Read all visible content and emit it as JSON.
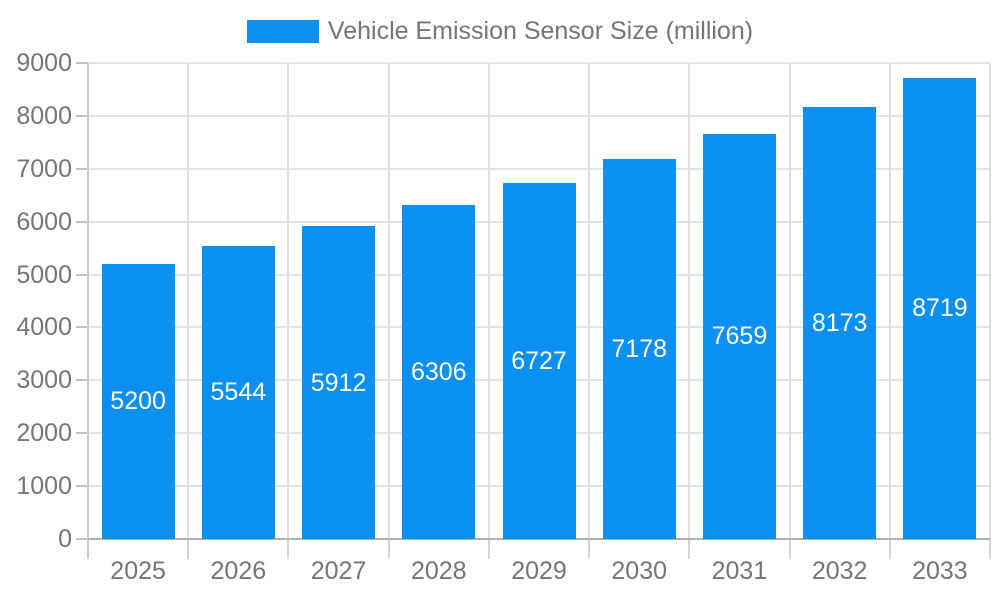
{
  "legend": {
    "label": "Vehicle Emission Sensor Size (million)"
  },
  "colors": {
    "bar": "#0a8ff2",
    "value_label_text": "#ffffff",
    "axis_text": "#757575",
    "gridline": "#e3e3e3",
    "axis_line": "#b0b0b0",
    "background": "#ffffff"
  },
  "chart_data": {
    "type": "bar",
    "title": "Vehicle Emission Sensor Size (million)",
    "series_name": "Vehicle Emission Sensor Size (million)",
    "categories": [
      "2025",
      "2026",
      "2027",
      "2028",
      "2029",
      "2030",
      "2031",
      "2032",
      "2033"
    ],
    "values": [
      5200,
      5544,
      5912,
      6306,
      6727,
      7178,
      7659,
      8173,
      8719
    ],
    "value_labels": [
      "5200",
      "5544",
      "5912",
      "6306",
      "6727",
      "7178",
      "7659",
      "8173",
      "8719"
    ],
    "xlabel": "",
    "ylabel": "",
    "ylim": [
      0,
      9000
    ],
    "ytick_interval": 1000,
    "ytick_labels": [
      "0",
      "1000",
      "2000",
      "3000",
      "4000",
      "5000",
      "6000",
      "7000",
      "8000",
      "9000"
    ],
    "grid": "horizontal-and-vertical",
    "legend_position": "top-center",
    "value_label_position": "inside-center",
    "bar_color": "#0a8ff2"
  }
}
